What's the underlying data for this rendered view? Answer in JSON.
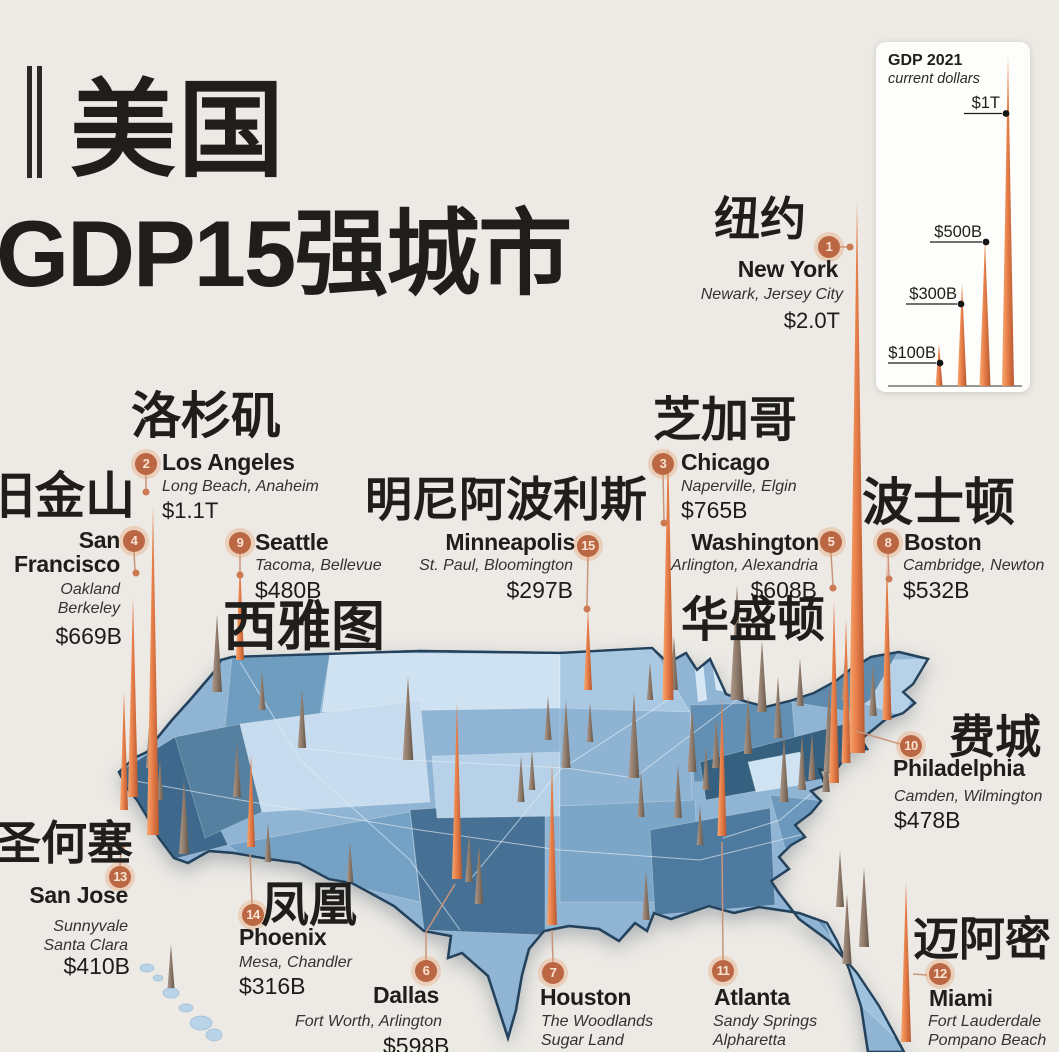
{
  "title": {
    "line1": "美国",
    "line2": "GDP15强城市"
  },
  "legend": {
    "title": "GDP 2021",
    "subtitle": "current dollars",
    "ticks": [
      {
        "label": "$1T"
      },
      {
        "label": "$500B"
      },
      {
        "label": "$300B"
      },
      {
        "label": "$100B"
      }
    ]
  },
  "cities": [
    {
      "rank": "1",
      "zh": "纽约",
      "en": "New York",
      "metro": [
        "Newark, Jersey City"
      ],
      "gdp": "$2.0T"
    },
    {
      "rank": "2",
      "zh": "洛杉矶",
      "en": "Los Angeles",
      "metro": [
        "Long Beach, Anaheim"
      ],
      "gdp": "$1.1T"
    },
    {
      "rank": "3",
      "zh": "芝加哥",
      "en": "Chicago",
      "metro": [
        "Naperville, Elgin"
      ],
      "gdp": "$765B"
    },
    {
      "rank": "4",
      "zh": "旧金山",
      "en": "San Francisco",
      "metro": [
        "Oakland",
        "Berkeley"
      ],
      "gdp": "$669B"
    },
    {
      "rank": "5",
      "zh": "华盛顿",
      "en": "Washington",
      "metro": [
        "Arlington, Alexandria"
      ],
      "gdp": "$608B"
    },
    {
      "rank": "6",
      "en": "Dallas",
      "metro": [
        "Fort Worth, Arlington"
      ],
      "gdp": "$598B"
    },
    {
      "rank": "7",
      "en": "Houston",
      "metro": [
        "The Woodlands",
        "Sugar Land"
      ]
    },
    {
      "rank": "8",
      "zh": "波士顿",
      "en": "Boston",
      "metro": [
        "Cambridge, Newton"
      ],
      "gdp": "$532B"
    },
    {
      "rank": "9",
      "zh": "西雅图",
      "en": "Seattle",
      "metro": [
        "Tacoma, Bellevue"
      ],
      "gdp": "$480B"
    },
    {
      "rank": "10",
      "zh": "费城",
      "en": "Philadelphia",
      "metro": [
        "Camden, Wilmington"
      ],
      "gdp": "$478B"
    },
    {
      "rank": "11",
      "en": "Atlanta",
      "metro": [
        "Sandy Springs",
        "Alpharetta"
      ]
    },
    {
      "rank": "12",
      "zh": "迈阿密",
      "en": "Miami",
      "metro": [
        "Fort Lauderdale",
        "Pompano Beach"
      ]
    },
    {
      "rank": "13",
      "zh": "圣何塞",
      "en": "San Jose",
      "metro": [
        "Sunnyvale",
        "Santa Clara"
      ],
      "gdp": "$410B"
    },
    {
      "rank": "14",
      "zh": "凤凰",
      "en": "Phoenix",
      "metro": [
        "Mesa, Chandler"
      ],
      "gdp": "$316B"
    },
    {
      "rank": "15",
      "zh": "明尼阿波利斯",
      "en": "Minneapolis",
      "metro": [
        "St. Paul, Bloomington"
      ],
      "gdp": "$297B"
    }
  ],
  "colors": {
    "background": "#edeae5",
    "spike_orange": "#e87f4a",
    "badge": "#bc6743",
    "map_dark": "#35607f",
    "map_mid": "#8fb4d4",
    "map_light": "#cfe2f1",
    "coast": "#24425c"
  },
  "chart_data": {
    "type": "map",
    "subtype": "3d-spike-map",
    "title": "美国GDP15强城市",
    "legend_title": "GDP 2021",
    "legend_subtitle": "current dollars",
    "legend_scale_labels": [
      "$1T",
      "$500B",
      "$300B",
      "$100B"
    ],
    "legend_scale_billions": [
      1000,
      500,
      300,
      100
    ],
    "points": [
      {
        "rank": 1,
        "city": "New York",
        "city_zh": "纽约",
        "metro": "Newark, Jersey City",
        "gdp_label": "$2.0T",
        "gdp_billions": 2000
      },
      {
        "rank": 2,
        "city": "Los Angeles",
        "city_zh": "洛杉矶",
        "metro": "Long Beach, Anaheim",
        "gdp_label": "$1.1T",
        "gdp_billions": 1100
      },
      {
        "rank": 3,
        "city": "Chicago",
        "city_zh": "芝加哥",
        "metro": "Naperville, Elgin",
        "gdp_label": "$765B",
        "gdp_billions": 765
      },
      {
        "rank": 4,
        "city": "San Francisco",
        "city_zh": "旧金山",
        "metro": "Oakland, Berkeley",
        "gdp_label": "$669B",
        "gdp_billions": 669
      },
      {
        "rank": 5,
        "city": "Washington",
        "city_zh": "华盛顿",
        "metro": "Arlington, Alexandria",
        "gdp_label": "$608B",
        "gdp_billions": 608
      },
      {
        "rank": 6,
        "city": "Dallas",
        "metro": "Fort Worth, Arlington",
        "gdp_label": "$598B",
        "gdp_billions": 598
      },
      {
        "rank": 7,
        "city": "Houston",
        "metro": "The Woodlands, Sugar Land"
      },
      {
        "rank": 8,
        "city": "Boston",
        "city_zh": "波士顿",
        "metro": "Cambridge, Newton",
        "gdp_label": "$532B",
        "gdp_billions": 532
      },
      {
        "rank": 9,
        "city": "Seattle",
        "city_zh": "西雅图",
        "metro": "Tacoma, Bellevue",
        "gdp_label": "$480B",
        "gdp_billions": 480
      },
      {
        "rank": 10,
        "city": "Philadelphia",
        "city_zh": "费城",
        "metro": "Camden, Wilmington",
        "gdp_label": "$478B",
        "gdp_billions": 478
      },
      {
        "rank": 11,
        "city": "Atlanta",
        "metro": "Sandy Springs, Alpharetta"
      },
      {
        "rank": 12,
        "city": "Miami",
        "city_zh": "迈阿密",
        "metro": "Fort Lauderdale, Pompano Beach"
      },
      {
        "rank": 13,
        "city": "San Jose",
        "city_zh": "圣何塞",
        "metro": "Sunnyvale, Santa Clara",
        "gdp_label": "$410B",
        "gdp_billions": 410
      },
      {
        "rank": 14,
        "city": "Phoenix",
        "city_zh": "凤凰",
        "metro": "Mesa, Chandler",
        "gdp_label": "$316B",
        "gdp_billions": 316
      },
      {
        "rank": 15,
        "city": "Minneapolis",
        "city_zh": "明尼阿波利斯",
        "metro": "St. Paul, Bloomington",
        "gdp_label": "$297B",
        "gdp_billions": 297
      }
    ]
  }
}
